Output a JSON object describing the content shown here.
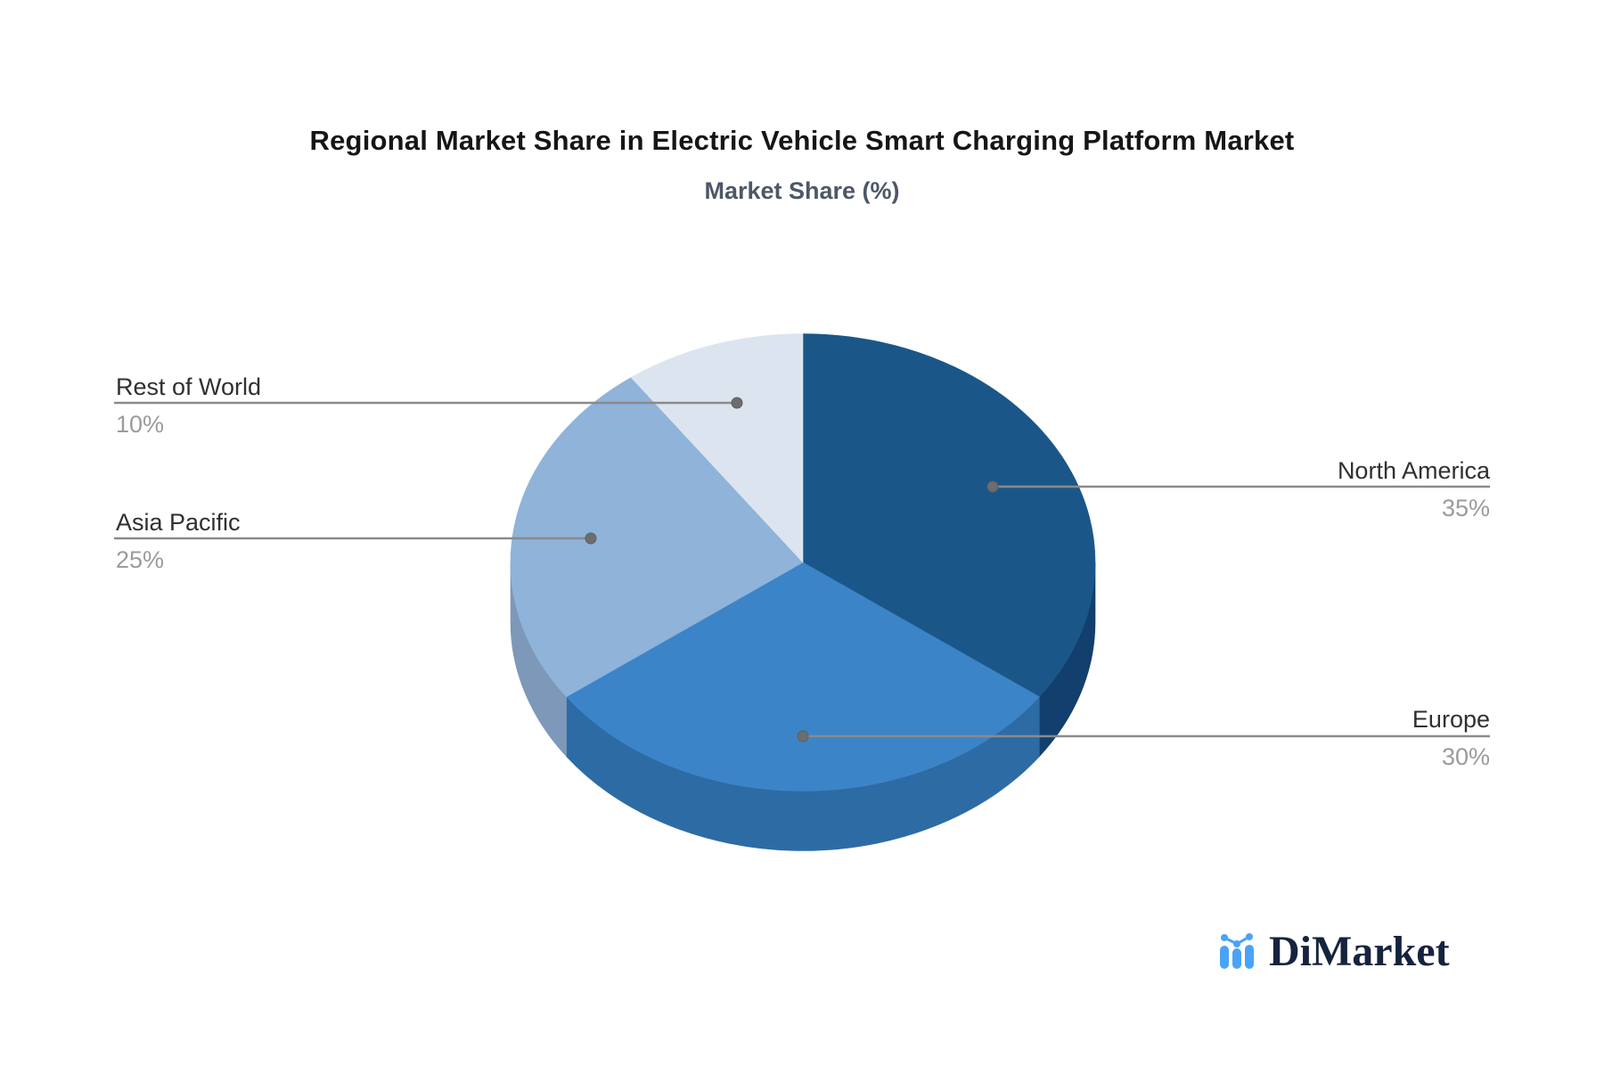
{
  "chart_data": {
    "type": "pie",
    "title": "Regional Market Share in Electric Vehicle Smart Charging Platform Market",
    "subtitle": "Market Share (%)",
    "unit": "%",
    "start_angle_deg": 0,
    "direction": "clockwise",
    "style": "3d-extruded",
    "series": [
      {
        "name": "North America",
        "value": 35,
        "value_label": "35%",
        "color": "#1a5788",
        "side_color": "#123f6d",
        "edge_color": "#17518a",
        "label_side": "right"
      },
      {
        "name": "Europe",
        "value": 30,
        "value_label": "30%",
        "color": "#3c84c8",
        "side_color": "#2d6ba5",
        "edge_color": "#2d6ba5",
        "label_side": "right"
      },
      {
        "name": "Asia Pacific",
        "value": 25,
        "value_label": "25%",
        "color": "#8fb3d9",
        "side_color": "#7d98b8",
        "edge_color": "#7d98b8",
        "label_side": "left"
      },
      {
        "name": "Rest of World",
        "value": 10,
        "value_label": "10%",
        "color": "#dce4ef",
        "side_color": "#c3cdda",
        "edge_color": "#c3cdda",
        "label_side": "left"
      }
    ],
    "colors": {
      "title": "#161616",
      "subtitle": "#4d5766",
      "label_name": "#303030",
      "label_value": "#9b9b9b",
      "leader_line": "#8a8a8a",
      "leader_dot": "#6d6d6d"
    },
    "legend_position": "none",
    "grid": false
  },
  "branding": {
    "logo_text": "DiMarket",
    "logo_text_color": "#15233f",
    "icon_color": "#4aa3f7",
    "icon": "bar-line-chart-icon"
  }
}
